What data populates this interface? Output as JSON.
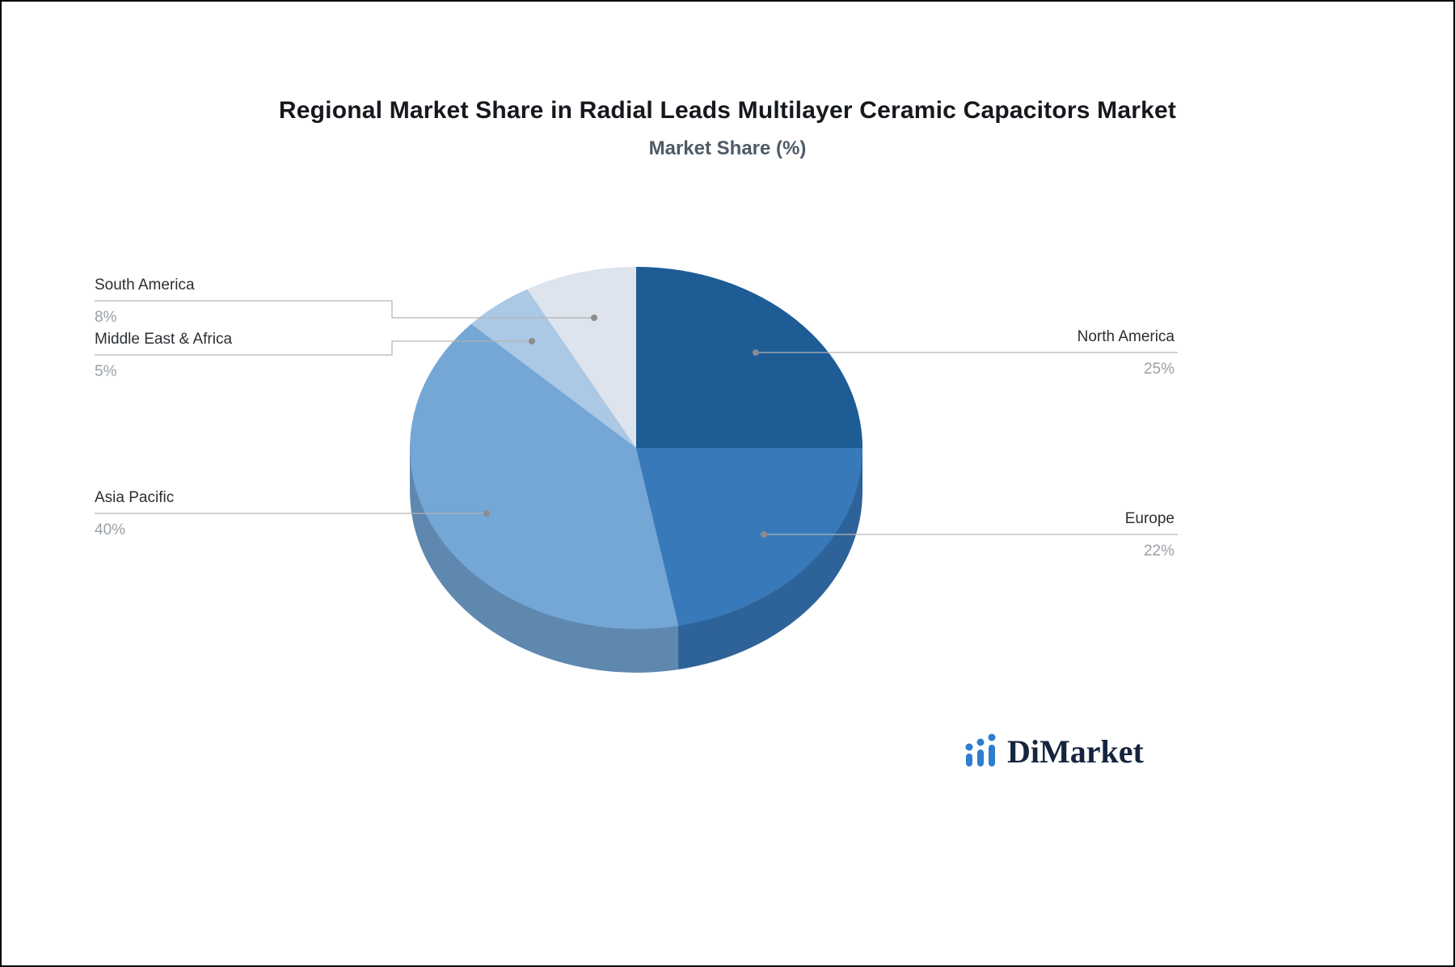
{
  "title": "Regional Market Share in Radial Leads Multilayer Ceramic Capacitors Market",
  "subtitle": "Market Share (%)",
  "logo": {
    "text": "DiMarket"
  },
  "chart_data": {
    "type": "pie",
    "style": "3d",
    "title": "Regional Market Share in Radial Leads Multilayer Ceramic Capacitors Market",
    "subtitle": "Market Share (%)",
    "unit": "%",
    "start_angle_deg": 0,
    "direction": "clockwise",
    "slices": [
      {
        "label": "North America",
        "value": 25,
        "display": "25%",
        "color": "#1e5c96"
      },
      {
        "label": "Europe",
        "value": 22,
        "display": "22%",
        "color": "#3879ba"
      },
      {
        "label": "Asia Pacific",
        "value": 40,
        "display": "40%",
        "color": "#74a6d6"
      },
      {
        "label": "Middle East & Africa",
        "value": 5,
        "display": "5%",
        "color": "#abc8e4"
      },
      {
        "label": "South America",
        "value": 8,
        "display": "8%",
        "color": "#dde4ee"
      }
    ]
  }
}
